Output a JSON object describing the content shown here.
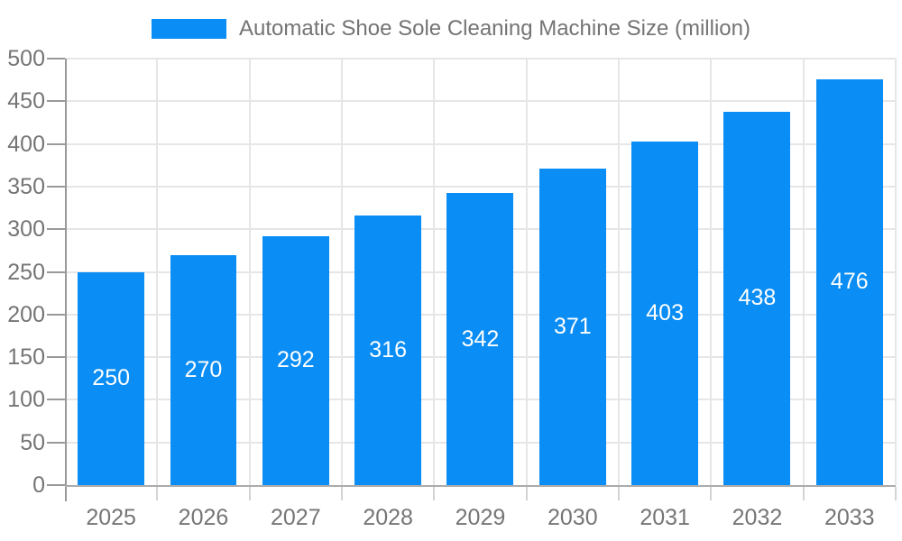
{
  "chart_data": {
    "type": "bar",
    "title": "",
    "legend": {
      "series_label": "Automatic Shoe Sole Cleaning Machine Size (million)",
      "position": "top-center"
    },
    "categories": [
      "2025",
      "2026",
      "2027",
      "2028",
      "2029",
      "2030",
      "2031",
      "2032",
      "2033"
    ],
    "series": [
      {
        "name": "Automatic Shoe Sole Cleaning Machine Size (million)",
        "values": [
          250,
          270,
          292,
          316,
          342,
          371,
          403,
          438,
          476
        ]
      }
    ],
    "data_labels": true,
    "xlabel": "",
    "ylabel": "",
    "ylim": [
      0,
      500
    ],
    "ytick_step": 50,
    "yticks": [
      0,
      50,
      100,
      150,
      200,
      250,
      300,
      350,
      400,
      450,
      500
    ],
    "grid": true,
    "colors": {
      "bar": "#0a8df4",
      "bar_label": "#ffffff",
      "axis": "#999999",
      "baseline": "#ababab",
      "gridline": "#e6e6e6",
      "minor_tick": "#d4d4d4",
      "tick_text": "#757575",
      "legend_text": "#747474",
      "background": "#ffffff"
    }
  }
}
